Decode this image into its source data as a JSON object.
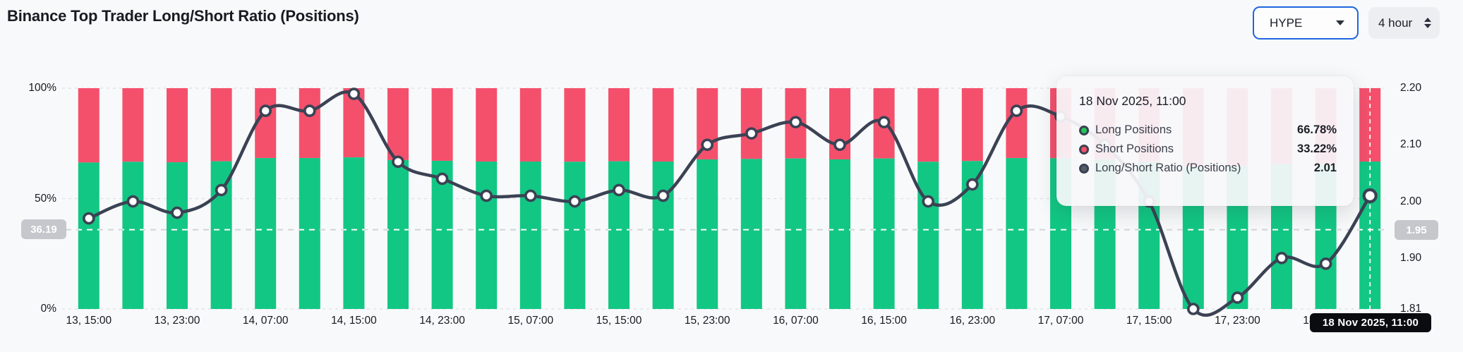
{
  "header": {
    "title": "Binance Top Trader Long/Short Ratio (Positions)"
  },
  "controls": {
    "symbol_select": {
      "value": "HYPE"
    },
    "interval_select": {
      "value": "4 hour"
    }
  },
  "chart_data": {
    "type": "bar",
    "subtype": "stacked-bars-with-line-overlay",
    "categories": [
      "13, 15:00",
      "13, 19:00",
      "13, 23:00",
      "14, 03:00",
      "14, 07:00",
      "14, 11:00",
      "14, 15:00",
      "14, 19:00",
      "14, 23:00",
      "15, 03:00",
      "15, 07:00",
      "15, 11:00",
      "15, 15:00",
      "15, 19:00",
      "15, 23:00",
      "16, 03:00",
      "16, 07:00",
      "16, 11:00",
      "16, 15:00",
      "16, 19:00",
      "16, 23:00",
      "17, 03:00",
      "17, 07:00",
      "17, 11:00",
      "17, 15:00",
      "17, 19:00",
      "17, 23:00",
      "18, 03:00",
      "18, 07:00",
      "18, 11:00"
    ],
    "x_tick_labels": [
      "13, 15:00",
      "13, 23:00",
      "14, 07:00",
      "14, 15:00",
      "14, 23:00",
      "15, 07:00",
      "15, 15:00",
      "15, 23:00",
      "16, 07:00",
      "16, 15:00",
      "16, 23:00",
      "17, 07:00",
      "17, 15:00",
      "17, 23:00",
      "18, 07:00"
    ],
    "x_tick_indices": [
      0,
      2,
      4,
      6,
      8,
      10,
      12,
      14,
      16,
      18,
      20,
      22,
      24,
      26,
      28
    ],
    "series": [
      {
        "name": "Long Positions",
        "type": "bar",
        "stack": true,
        "unit": "%",
        "color": "#12c784",
        "values": [
          66.33,
          66.67,
          66.44,
          66.89,
          68.35,
          68.35,
          68.65,
          67.43,
          67.11,
          66.78,
          66.78,
          66.67,
          66.89,
          66.78,
          67.74,
          67.95,
          68.15,
          67.74,
          68.15,
          66.67,
          66.99,
          68.35,
          68.25,
          67.74,
          66.67,
          64.41,
          64.66,
          65.52,
          65.4,
          66.78
        ]
      },
      {
        "name": "Short Positions",
        "type": "bar",
        "stack": true,
        "unit": "%",
        "color": "#f4506c",
        "values": [
          33.67,
          33.33,
          33.56,
          33.11,
          31.65,
          31.65,
          31.35,
          32.57,
          32.89,
          33.22,
          33.22,
          33.33,
          33.11,
          33.22,
          32.26,
          32.05,
          31.85,
          32.26,
          31.85,
          33.33,
          33.01,
          31.65,
          31.75,
          32.26,
          33.33,
          35.59,
          35.34,
          34.48,
          34.6,
          33.22
        ]
      },
      {
        "name": "Long/Short Ratio (Positions)",
        "type": "line",
        "color": "#3b4254",
        "values": [
          1.97,
          2.0,
          1.98,
          2.02,
          2.16,
          2.16,
          2.19,
          2.07,
          2.04,
          2.01,
          2.01,
          2.0,
          2.02,
          2.01,
          2.1,
          2.12,
          2.14,
          2.1,
          2.14,
          2.0,
          2.03,
          2.16,
          2.15,
          2.1,
          2.0,
          1.81,
          1.83,
          1.9,
          1.89,
          2.01
        ]
      }
    ],
    "y_left": {
      "ticks": [
        "100%",
        "50%",
        "0%"
      ],
      "min": 0,
      "max": 100
    },
    "y_right": {
      "ticks": [
        "2.20",
        "2.10",
        "2.00",
        "1.90",
        "1.81"
      ],
      "min": 1.81,
      "max": 2.2
    },
    "marker_line": {
      "left_badge": "36.19",
      "right_badge": "1.95",
      "ratio_value": 1.95
    },
    "crosshair": {
      "index": 29,
      "label": "18 Nov 2025, 11:00"
    },
    "grid": "horizontal-dashed",
    "legend_position": "tooltip-only"
  },
  "tooltip": {
    "title": "18 Nov 2025, 11:00",
    "rows": [
      {
        "label": "Long Positions",
        "value": "66.78%",
        "dot_color": "#22c55e"
      },
      {
        "label": "Short Positions",
        "value": "33.22%",
        "dot_color": "#f4506c"
      },
      {
        "label": "Long/Short Ratio (Positions)",
        "value": "2.01",
        "dot_color": "#555c69"
      }
    ]
  }
}
